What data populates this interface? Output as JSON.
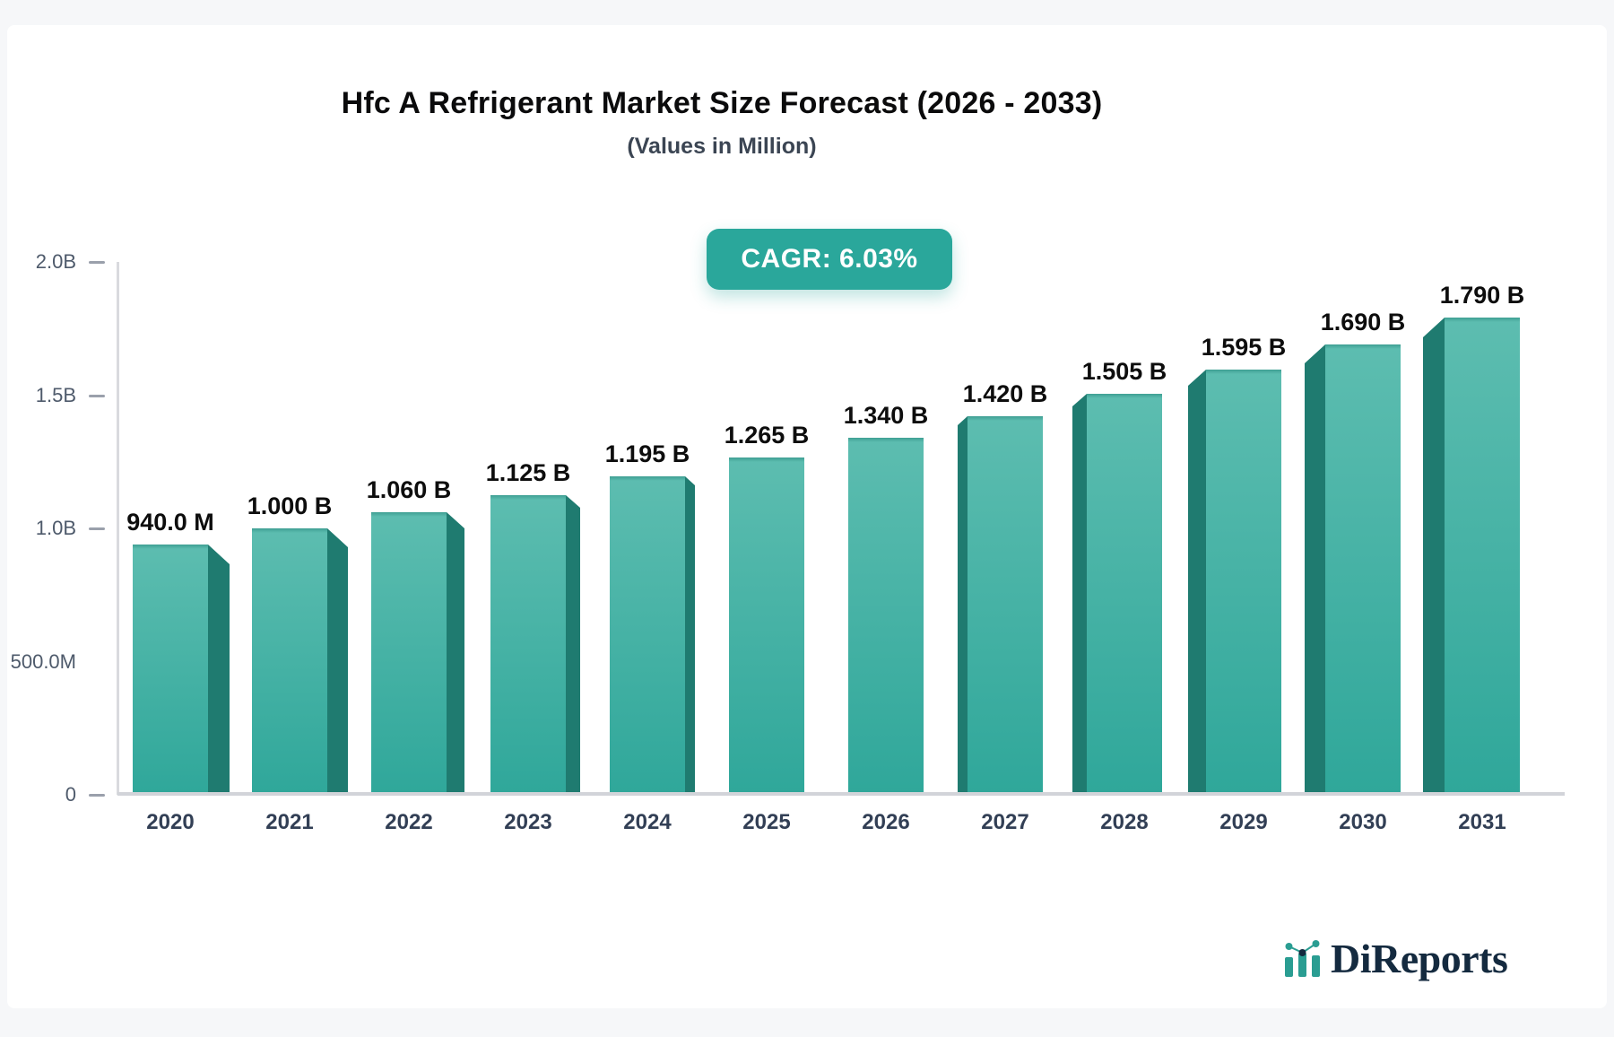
{
  "page": {
    "background": "#f6f7f9",
    "card_background": "#ffffff"
  },
  "header": {
    "title": "Hfc A Refrigerant Market Size Forecast (2026 - 2033)",
    "subtitle": "(Values in Million)"
  },
  "badge": {
    "label": "CAGR: 6.03%",
    "background": "#2aa79b",
    "text_color": "#ffffff"
  },
  "chart_data": {
    "type": "bar",
    "title": "Hfc A Refrigerant Market Size Forecast (2026 - 2033)",
    "subtitle": "(Values in Million)",
    "annotation": "CAGR: 6.03%",
    "categories": [
      "2020",
      "2021",
      "2022",
      "2023",
      "2024",
      "2025",
      "2026",
      "2027",
      "2028",
      "2029",
      "2030",
      "2031"
    ],
    "values_billions": [
      0.94,
      1.0,
      1.06,
      1.125,
      1.195,
      1.265,
      1.34,
      1.42,
      1.505,
      1.595,
      1.69,
      1.79
    ],
    "value_labels": [
      "940.0 M",
      "1.000 B",
      "1.060 B",
      "1.125 B",
      "1.195 B",
      "1.265 B",
      "1.340 B",
      "1.420 B",
      "1.505 B",
      "1.595 B",
      "1.690 B",
      "1.790 B"
    ],
    "xlabel": "",
    "ylabel": "",
    "ylim_billions": [
      0,
      2.0
    ],
    "yticks": [
      {
        "label": "2.0B",
        "value": 2.0,
        "dash": true
      },
      {
        "label": "1.5B",
        "value": 1.5,
        "dash": true
      },
      {
        "label": "1.0B",
        "value": 1.0,
        "dash": true
      },
      {
        "label": "500.0M",
        "value": 0.5,
        "dash": false
      },
      {
        "label": "0",
        "value": 0.0,
        "dash": true
      }
    ],
    "grid": "off",
    "legend": "none",
    "bar_style_3d": true,
    "colors": {
      "face_top": "#5dbdb0",
      "face_bottom": "#2fa79a",
      "side": "#1f7b70",
      "axis_line": "#d2d4d9",
      "tick_text": "#4e5a6b",
      "category_text": "#323f55",
      "value_text": "#0d0d0d"
    }
  },
  "logo": {
    "text": "DiReports",
    "text_color": "#142a3f",
    "icon": "bar-chart-logo-icon",
    "icon_color": "#2a9d92"
  }
}
